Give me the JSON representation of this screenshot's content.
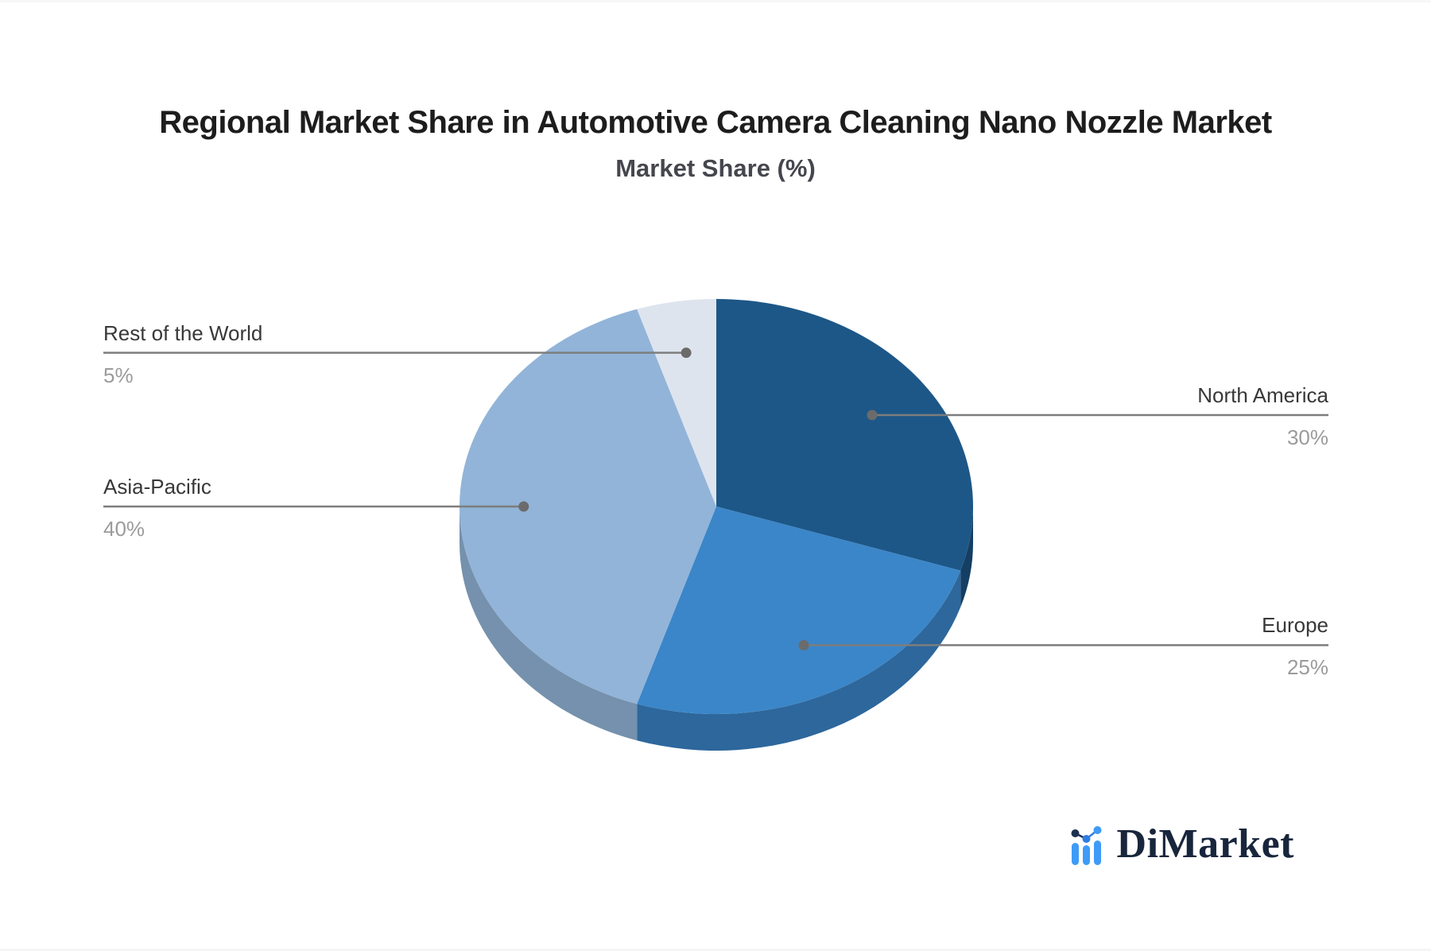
{
  "chart_data": {
    "type": "pie",
    "style": "3d",
    "title": "Regional Market Share in Automotive Camera Cleaning Nano Nozzle Market",
    "subtitle": "Market Share (%)",
    "categories": [
      "North America",
      "Europe",
      "Asia-Pacific",
      "Rest of the World"
    ],
    "values": [
      30,
      25,
      40,
      5
    ],
    "labels": [
      "30%",
      "25%",
      "40%",
      "5%"
    ],
    "unit": "%",
    "start_angle_deg": 0,
    "direction": "clockwise",
    "legend_position": "callouts",
    "slice_colors": [
      "#1d5787",
      "#3b86c8",
      "#92b4d8",
      "#dee4ee"
    ],
    "slice_side_colors": [
      "#143e63",
      "#2d679c",
      "#7591ad",
      "#b3bcc9"
    ]
  },
  "colors": {
    "title": "#1d1d1d",
    "subtitle": "#45464e",
    "callout_label": "#383838",
    "callout_percent": "#9b9b9b",
    "leader_line": "#7d7d7d",
    "leader_dot": "#6b6b6b",
    "logo_text": "#18263c",
    "logo_blue": "#3f9bf7",
    "logo_mid_blue": "#2f7de2",
    "logo_navy": "#1d3250"
  },
  "brand": {
    "name": "DiMarket"
  }
}
